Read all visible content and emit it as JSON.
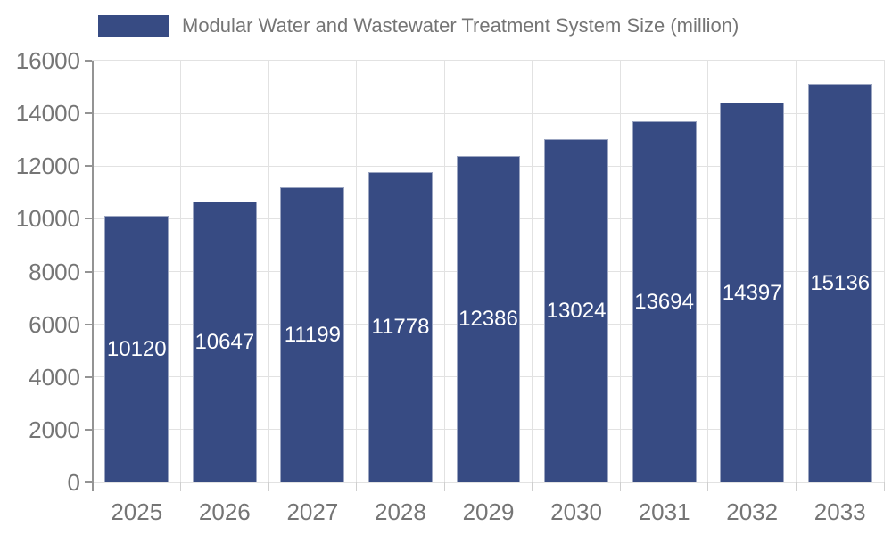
{
  "legend": {
    "label": "Modular Water and Wastewater Treatment System Size (million)"
  },
  "chart_data": {
    "type": "bar",
    "title": "",
    "legend": "Modular Water and Wastewater Treatment System Size (million)",
    "categories": [
      "2025",
      "2026",
      "2027",
      "2028",
      "2029",
      "2030",
      "2031",
      "2032",
      "2033"
    ],
    "values": [
      10120,
      10647,
      11199,
      11778,
      12386,
      13024,
      13694,
      14397,
      15136
    ],
    "xlabel": "",
    "ylabel": "",
    "ylim": [
      0,
      16000
    ],
    "ytick_step": 2000,
    "grid": true,
    "legend_position": "top-left",
    "bar_color": "#374B83",
    "value_label_color": "#FFFFFF"
  },
  "colors": {
    "bar": "#374B83",
    "grid": "#E2E2E2",
    "axis": "#949494",
    "tick_minor": "#CFCFCF",
    "text": "#757575",
    "value_label": "#FFFFFF",
    "background": "#FFFFFF"
  }
}
